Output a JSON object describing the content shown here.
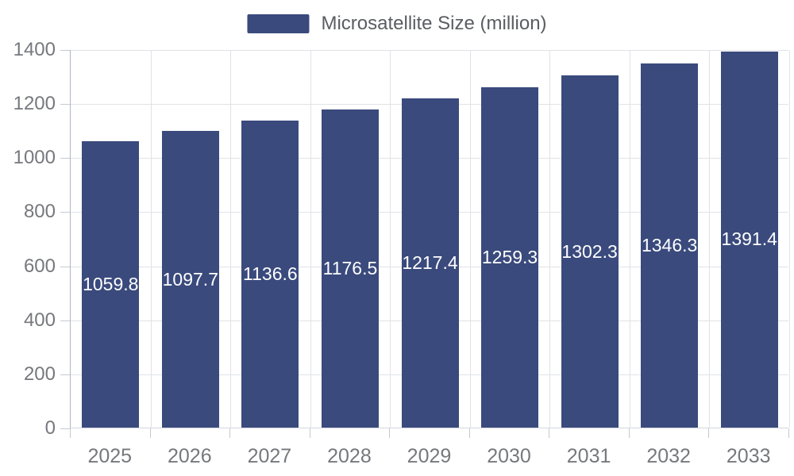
{
  "legend": {
    "label": "Microsatellite Size (million)"
  },
  "chart_data": {
    "type": "bar",
    "title": "",
    "xlabel": "",
    "ylabel": "",
    "categories": [
      "2025",
      "2026",
      "2027",
      "2028",
      "2029",
      "2030",
      "2031",
      "2032",
      "2033"
    ],
    "series": [
      {
        "name": "Microsatellite Size (million)",
        "values": [
          1059.8,
          1097.7,
          1136.6,
          1176.5,
          1217.4,
          1259.3,
          1302.3,
          1346.3,
          1391.4
        ]
      }
    ],
    "data_labels": true,
    "ylim": [
      0,
      1400
    ],
    "yticks": [
      0,
      200,
      400,
      600,
      800,
      1000,
      1200,
      1400
    ],
    "grid": true,
    "legend_position": "top",
    "colors": {
      "bar": "#3A4A7D",
      "bar_value_text": "#FFFFFF",
      "grid_line": "#E1E2E6",
      "y_axis_line": "#B0B4C2",
      "x_axis_line": "#D4D6DC",
      "tick": "#C6C9D4",
      "axis_text": "#76787D",
      "legend_text": "#5A5D62"
    }
  }
}
